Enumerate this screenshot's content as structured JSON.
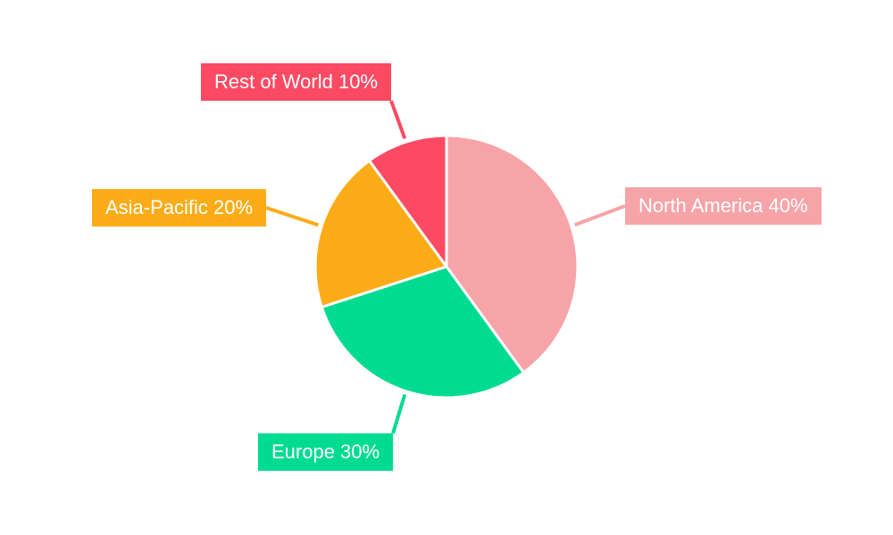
{
  "chart_data": {
    "type": "pie",
    "title": "",
    "categories": [
      "North America",
      "Europe",
      "Asia-Pacific",
      "Rest of World"
    ],
    "values": [
      40,
      30,
      20,
      10
    ],
    "unit": "%",
    "direction": "clockwise",
    "start_angle": "12 o'clock",
    "legend_position": "none (outside callout labels with leader lines)",
    "background": "#FFFFFF",
    "label_text_color": "#FFFFFF",
    "slices": [
      {
        "label": "North America",
        "value": 40,
        "text": "North America 40%",
        "color": "#F7A4A8"
      },
      {
        "label": "Europe",
        "value": 30,
        "text": "Europe 30%",
        "color": "#00DB92"
      },
      {
        "label": "Asia-Pacific",
        "value": 20,
        "text": "Asia-Pacific 20%",
        "color": "#FBAC17"
      },
      {
        "label": "Rest of World",
        "value": 10,
        "text": "Rest of World 10%",
        "color": "#FC4A63"
      }
    ]
  }
}
